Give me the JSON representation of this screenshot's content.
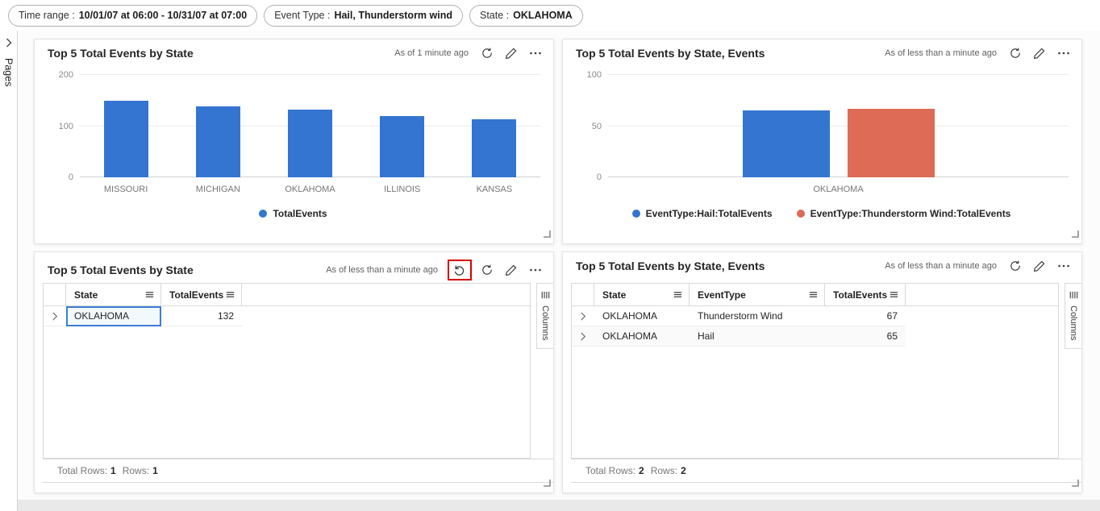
{
  "filter_bar": {
    "pills": [
      {
        "label": "Time range :",
        "value": "10/01/07 at 06:00 - 10/31/07 at 07:00"
      },
      {
        "label": "Event Type :",
        "value": "Hail, Thunderstorm wind"
      },
      {
        "label": "State :",
        "value": "OKLAHOMA"
      }
    ]
  },
  "pages_panel": {
    "title": "Pages"
  },
  "tiles": {
    "chart_state": {
      "title": "Top 5 Total Events by State",
      "as_of": "As of 1 minute ago"
    },
    "chart_state_events": {
      "title": "Top 5 Total Events by State, Events",
      "as_of": "As of less than a minute ago"
    },
    "table_state": {
      "title": "Top 5 Total Events by State",
      "as_of": "As of less than a minute ago",
      "columns": [
        "State",
        "TotalEvents"
      ],
      "rows": [
        [
          "OKLAHOMA",
          "132"
        ]
      ],
      "selected_cell": {
        "row": 0,
        "col": 0
      },
      "footer": {
        "total_rows_label": "Total Rows:",
        "total_rows_value": "1",
        "rows_label": "Rows:",
        "rows_value": "1"
      },
      "side_tab_label": "Columns"
    },
    "table_state_events": {
      "title": "Top 5 Total Events by State, Events",
      "as_of": "As of less than a minute ago",
      "columns": [
        "State",
        "EventType",
        "TotalEvents"
      ],
      "rows": [
        [
          "OKLAHOMA",
          "Thunderstorm Wind",
          "67"
        ],
        [
          "OKLAHOMA",
          "Hail",
          "65"
        ]
      ],
      "footer": {
        "total_rows_label": "Total Rows:",
        "total_rows_value": "2",
        "rows_label": "Rows:",
        "rows_value": "2"
      },
      "side_tab_label": "Columns"
    }
  },
  "chart_data": [
    {
      "type": "bar",
      "title": "Top 5 Total Events by State",
      "categories": [
        "MISSOURI",
        "MICHIGAN",
        "OKLAHOMA",
        "ILLINOIS",
        "KANSAS"
      ],
      "series": [
        {
          "name": "TotalEvents",
          "color": "#3375d1",
          "values": [
            150,
            139,
            132,
            120,
            113
          ]
        }
      ],
      "xlabel": "",
      "ylabel": "",
      "ylim": [
        0,
        200
      ],
      "yticks": [
        0,
        100,
        200
      ],
      "grid": true,
      "legend_position": "bottom"
    },
    {
      "type": "bar",
      "title": "Top 5 Total Events by State, Events",
      "categories": [
        "OKLAHOMA"
      ],
      "series": [
        {
          "name": "EventType:Hail:TotalEvents",
          "color": "#3375d1",
          "values": [
            65
          ]
        },
        {
          "name": "EventType:Thunderstorm Wind:TotalEvents",
          "color": "#dd6b56",
          "values": [
            67
          ]
        }
      ],
      "xlabel": "",
      "ylabel": "",
      "ylim": [
        0,
        100
      ],
      "yticks": [
        0,
        50,
        100
      ],
      "grid": true,
      "legend_position": "bottom"
    }
  ],
  "colors": {
    "bar_blue": "#3375d1",
    "bar_red": "#dd6b56",
    "annotation_red": "#d60000",
    "selected_cell_border": "#3c7ed3"
  }
}
